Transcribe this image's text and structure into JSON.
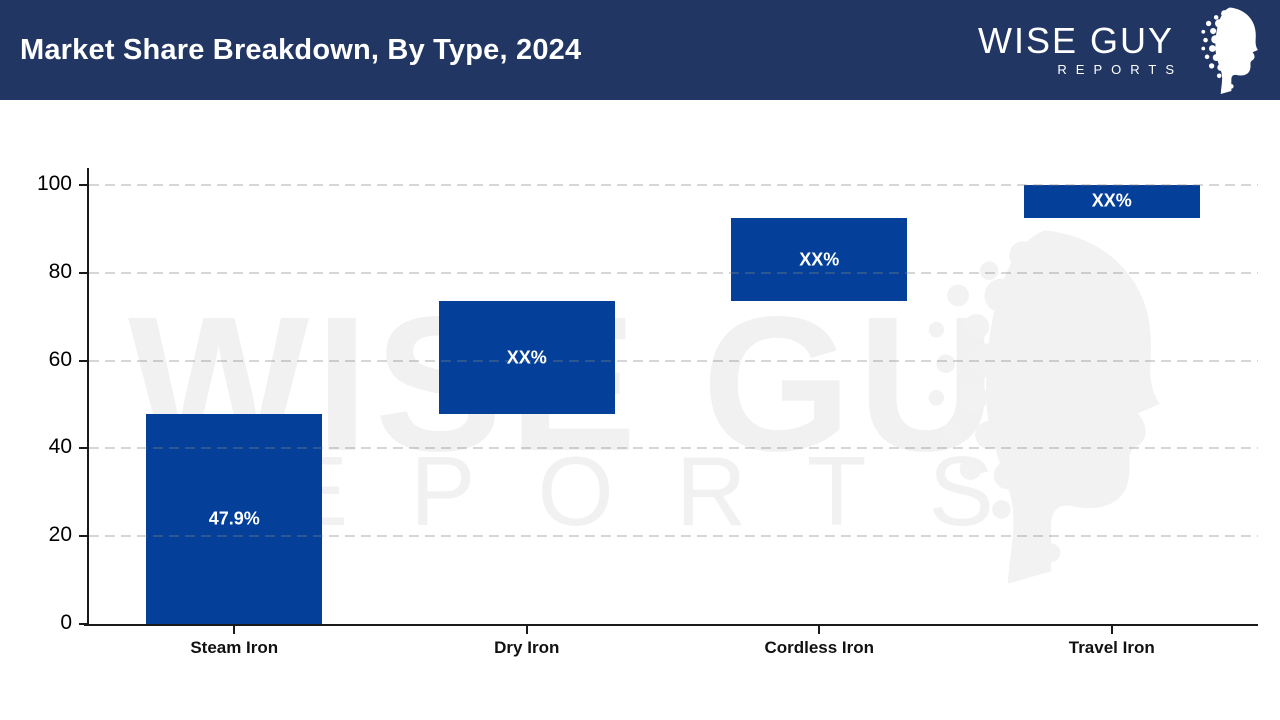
{
  "header": {
    "title": "Market Share Breakdown, By Type, 2024",
    "logo": {
      "line1": "WISE GUY",
      "line2": "REPORTS"
    }
  },
  "watermark": {
    "line1": "WISE GUY",
    "line2": "REPORTS"
  },
  "chart_data": {
    "type": "bar",
    "subtype": "waterfall-floating-bars",
    "title": "Market Share Breakdown, By Type, 2024",
    "categories": [
      "Steam Iron",
      "Dry Iron",
      "Cordless Iron",
      "Travel Iron"
    ],
    "segments": [
      {
        "category": "Steam Iron",
        "start": 0,
        "end": 47.9,
        "label": "47.9%"
      },
      {
        "category": "Dry Iron",
        "start": 47.9,
        "end": 73.5,
        "label": "XX%"
      },
      {
        "category": "Cordless Iron",
        "start": 73.5,
        "end": 92.5,
        "label": "XX%"
      },
      {
        "category": "Travel Iron",
        "start": 92.5,
        "end": 100,
        "label": "XX%"
      }
    ],
    "xlabel": "",
    "ylabel": "",
    "ylim": [
      0,
      100
    ],
    "yticks": [
      0,
      20,
      40,
      60,
      80,
      100
    ],
    "grid": "dashed-horizontal-over-bars",
    "legend": "none",
    "bar_color": "#04409a",
    "bar_label_color": "#ffffff"
  },
  "colors": {
    "header_bg": "#223664",
    "bar": "#04409a",
    "axis": "#1a1a1a",
    "watermark": "#f1f1f1",
    "page_edge": "#d9d9d9"
  }
}
